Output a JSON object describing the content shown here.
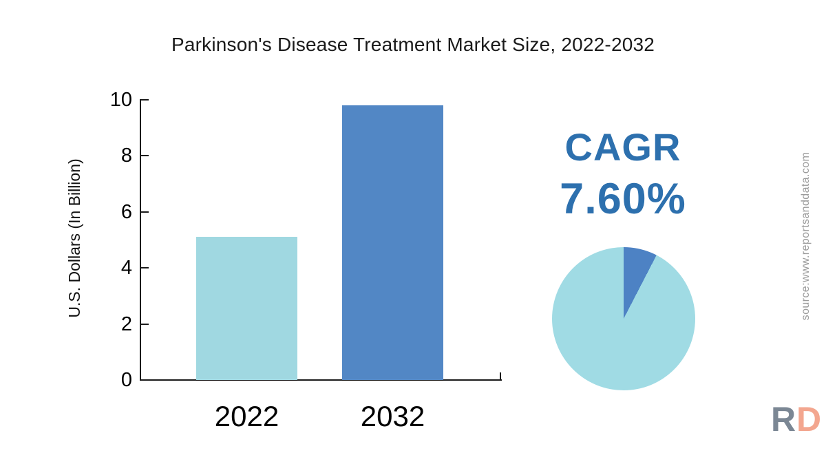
{
  "title": "Parkinson's Disease Treatment Market Size, 2022-2032",
  "chart_data": [
    {
      "type": "bar",
      "title": "Parkinson's Disease Treatment Market Size, 2022-2032",
      "categories": [
        "2022",
        "2032"
      ],
      "values": [
        5.1,
        9.8
      ],
      "xlabel": "",
      "ylabel": "U.S. Dollars (In Billion)",
      "ylim": [
        0,
        10
      ],
      "yticks": [
        0,
        2,
        4,
        6,
        8,
        10
      ],
      "bar_colors": [
        "#a0d8e1",
        "#5287c5"
      ],
      "grid": false,
      "legend": "none"
    },
    {
      "type": "pie",
      "slices": [
        {
          "label": "CAGR 7.60%",
          "value": 7.6,
          "color": "#4d82c4"
        },
        {
          "label": "remainder",
          "value": 92.4,
          "color": "#a0dbe4"
        }
      ],
      "start_angle_deg": 0,
      "direction": "clockwise",
      "legend": "none"
    }
  ],
  "y_axis": {
    "label": "U.S. Dollars (In Billion)",
    "ticks": [
      "10",
      "8",
      "6",
      "4",
      "2",
      "0"
    ]
  },
  "x_axis": {
    "labels": [
      "2022",
      "2032"
    ]
  },
  "cagr": {
    "label": "CAGR",
    "value": "7.60%",
    "percent": 7.6,
    "color": "#2d70ae"
  },
  "source": {
    "text": "source:www.reportsanddata.com"
  },
  "logo": {
    "letter_r": "R",
    "letter_d": "D",
    "r_color": "#7b8794",
    "d_color": "#f3a68f"
  }
}
